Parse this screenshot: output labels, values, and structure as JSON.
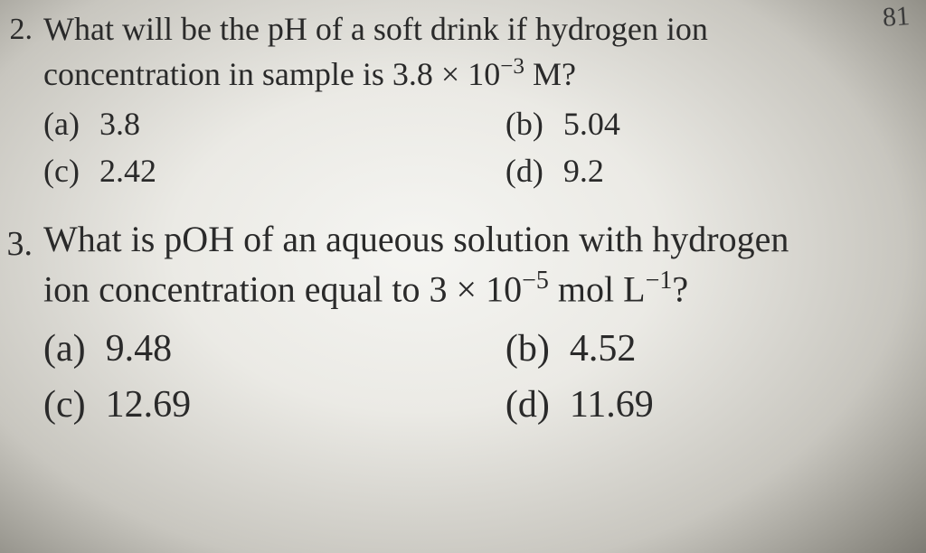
{
  "corner": "81",
  "q2": {
    "number": "2.",
    "line1_a": "What will be the pH of a soft drink if hydrogen ion",
    "line2_a": "concentration in sample is 3.8 × 10",
    "line2_exp": "−3",
    "line2_b": " M?",
    "a_lbl": "(a)",
    "a_val": "3.8",
    "b_lbl": "(b)",
    "b_val": "5.04",
    "c_lbl": "(c)",
    "c_val": "2.42",
    "d_lbl": "(d)",
    "d_val": "9.2"
  },
  "q3": {
    "number": "3.",
    "line1": "What is pOH of an aqueous solution with hydrogen",
    "line2_a": "ion concentration equal to 3 × 10",
    "line2_exp": "−5",
    "line2_b": " mol L",
    "line2_exp2": "−1",
    "line2_c": "?",
    "a_lbl": "(a)",
    "a_val": "9.48",
    "b_lbl": "(b)",
    "b_val": "4.52",
    "c_lbl": "(c)",
    "c_val": "12.69",
    "d_lbl": "(d)",
    "d_val": "11.69"
  }
}
